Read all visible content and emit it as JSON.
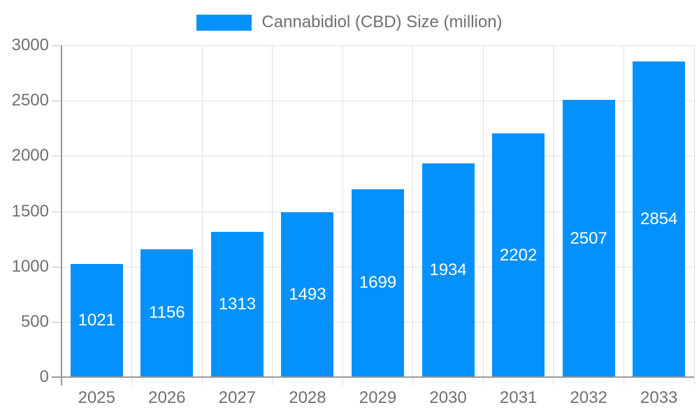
{
  "chart_data": {
    "type": "bar",
    "title": "Cannabidiol (CBD) Size (million)",
    "series_name": "Cannabidiol (CBD) Size (million)",
    "categories": [
      "2025",
      "2026",
      "2027",
      "2028",
      "2029",
      "2030",
      "2031",
      "2032",
      "2033"
    ],
    "values": [
      1021,
      1156,
      1313,
      1493,
      1699,
      1934,
      2202,
      2507,
      2854
    ],
    "xlabel": "",
    "ylabel": "",
    "ylim": [
      0,
      3000
    ],
    "yticks": [
      0,
      500,
      1000,
      1500,
      2000,
      2500,
      3000
    ],
    "grid": true,
    "legend_position": "top",
    "bar_color": "#0591fb",
    "value_label_color": "#ffffff",
    "axis_text_color": "#707070",
    "gridline_color": "#e0e0e0",
    "axis_line_color": "#999999"
  },
  "legend": {
    "label": "Cannabidiol (CBD) Size (million)"
  }
}
